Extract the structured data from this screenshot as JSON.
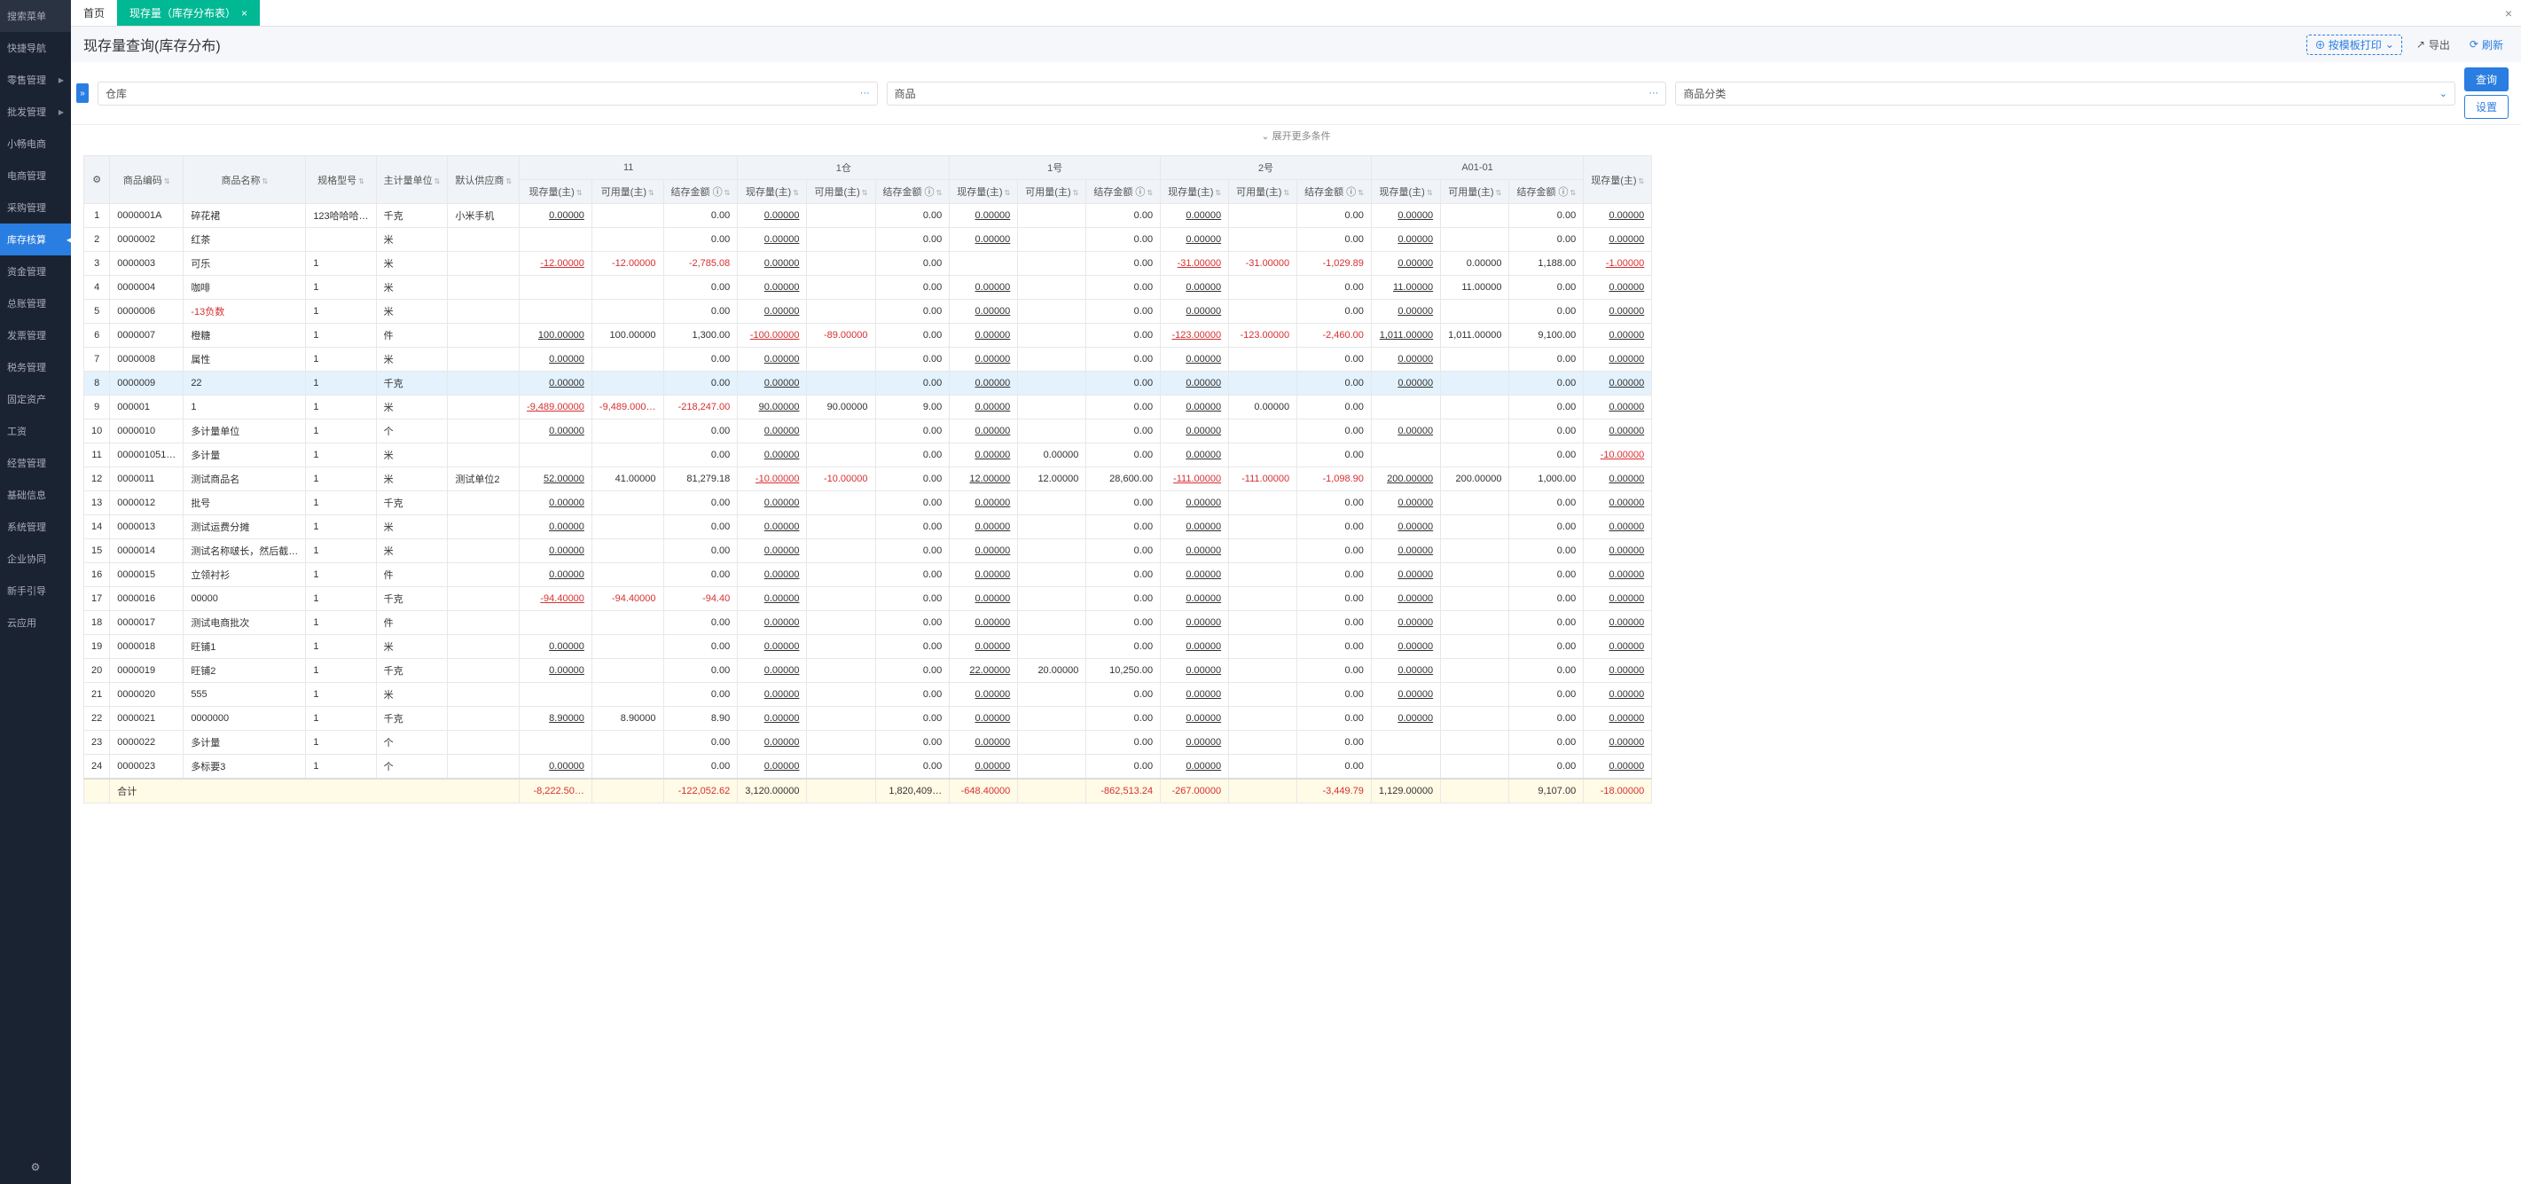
{
  "sidebar": {
    "items": [
      {
        "label": "搜索菜单",
        "arrow": false
      },
      {
        "label": "快捷导航",
        "arrow": false
      },
      {
        "label": "零售管理",
        "arrow": true
      },
      {
        "label": "批发管理",
        "arrow": true
      },
      {
        "label": "小畅电商",
        "arrow": false
      },
      {
        "label": "电商管理",
        "arrow": false
      },
      {
        "label": "采购管理",
        "arrow": false
      },
      {
        "label": "库存核算",
        "arrow": false,
        "active": true
      },
      {
        "label": "资金管理",
        "arrow": false
      },
      {
        "label": "总账管理",
        "arrow": false
      },
      {
        "label": "发票管理",
        "arrow": false
      },
      {
        "label": "税务管理",
        "arrow": false
      },
      {
        "label": "固定资产",
        "arrow": false
      },
      {
        "label": "工资",
        "arrow": false
      },
      {
        "label": "经营管理",
        "arrow": false
      },
      {
        "label": "基础信息",
        "arrow": false
      },
      {
        "label": "系统管理",
        "arrow": false
      },
      {
        "label": "企业协同",
        "arrow": false
      },
      {
        "label": "新手引导",
        "arrow": false
      },
      {
        "label": "云应用",
        "arrow": false
      }
    ]
  },
  "tabs": [
    {
      "label": "首页",
      "active": false,
      "closable": false
    },
    {
      "label": "现存量（库存分布表）",
      "active": true,
      "closable": true
    }
  ],
  "header": {
    "title": "现存量查询(库存分布)",
    "print": "⊕ 按模板打印",
    "export": "导出",
    "refresh": "刷新"
  },
  "filters": {
    "f1": "仓库",
    "f2": "商品",
    "f3": "商品分类",
    "sel": "···",
    "chev": "⌄",
    "query": "查询",
    "settings": "设置",
    "expand": "⌄ 展开更多条件"
  },
  "table": {
    "fixed_cols": [
      "",
      "商品编码",
      "商品名称",
      "规格型号",
      "主计量单位",
      "默认供应商"
    ],
    "warehouses": [
      "11",
      "1仓",
      "1号",
      "2号",
      "A01-01"
    ],
    "wh_sub": [
      "现存量(主)",
      "可用量(主)",
      "结存金额 ⓘ"
    ],
    "extra_col": "现存量(主)",
    "rows": [
      {
        "n": 1,
        "code": "0000001A",
        "name": "碎花裙",
        "spec": "123哈哈哈…",
        "unit": "千克",
        "sup": "小米手机",
        "v": [
          "0.00000",
          "",
          "0.00",
          "0.00000",
          "",
          "0.00",
          "0.00000",
          "",
          "0.00",
          "0.00000",
          "",
          "0.00",
          "0.00000",
          "",
          "0.00",
          "0.00000"
        ]
      },
      {
        "n": 2,
        "code": "0000002",
        "name": "红茶",
        "spec": "",
        "unit": "米",
        "sup": "",
        "v": [
          "",
          "",
          "0.00",
          "0.00000",
          "",
          "0.00",
          "0.00000",
          "",
          "0.00",
          "0.00000",
          "",
          "0.00",
          "0.00000",
          "",
          "0.00",
          "0.00000"
        ]
      },
      {
        "n": 3,
        "code": "0000003",
        "name": "可乐",
        "spec": "1",
        "unit": "米",
        "sup": "",
        "v": [
          "-12.00000",
          "-12.00000",
          "-2,785.08",
          "0.00000",
          "",
          "0.00",
          "",
          "",
          "0.00",
          "-31.00000",
          "-31.00000",
          "-1,029.89",
          "0.00000",
          "0.00000",
          "1,188.00",
          "-1.00000"
        ],
        "neg": [
          0,
          1,
          2,
          9,
          10,
          11,
          15
        ]
      },
      {
        "n": 4,
        "code": "0000004",
        "name": "咖啡",
        "spec": "1",
        "unit": "米",
        "sup": "",
        "v": [
          "",
          "",
          "0.00",
          "0.00000",
          "",
          "0.00",
          "0.00000",
          "",
          "0.00",
          "0.00000",
          "",
          "0.00",
          "11.00000",
          "11.00000",
          "0.00",
          "0.00000"
        ]
      },
      {
        "n": 5,
        "code": "0000006",
        "name": "-13负数",
        "nameNeg": true,
        "spec": "1",
        "unit": "米",
        "sup": "",
        "v": [
          "",
          "",
          "0.00",
          "0.00000",
          "",
          "0.00",
          "0.00000",
          "",
          "0.00",
          "0.00000",
          "",
          "0.00",
          "0.00000",
          "",
          "0.00",
          "0.00000"
        ]
      },
      {
        "n": 6,
        "code": "0000007",
        "name": "橙糖",
        "spec": "1",
        "unit": "件",
        "sup": "",
        "v": [
          "100.00000",
          "100.00000",
          "1,300.00",
          "-100.00000",
          "-89.00000",
          "0.00",
          "0.00000",
          "",
          "0.00",
          "-123.00000",
          "-123.00000",
          "-2,460.00",
          "1,011.00000",
          "1,011.00000",
          "9,100.00",
          "0.00000"
        ],
        "neg": [
          3,
          4,
          9,
          10,
          11
        ]
      },
      {
        "n": 7,
        "code": "0000008",
        "name": "属性",
        "spec": "1",
        "unit": "米",
        "sup": "",
        "v": [
          "0.00000",
          "",
          "0.00",
          "0.00000",
          "",
          "0.00",
          "0.00000",
          "",
          "0.00",
          "0.00000",
          "",
          "0.00",
          "0.00000",
          "",
          "0.00",
          "0.00000"
        ]
      },
      {
        "n": 8,
        "code": "0000009",
        "name": "22",
        "spec": "1",
        "unit": "千克",
        "sup": "",
        "hl": true,
        "v": [
          "0.00000",
          "",
          "0.00",
          "0.00000",
          "",
          "0.00",
          "0.00000",
          "",
          "0.00",
          "0.00000",
          "",
          "0.00",
          "0.00000",
          "",
          "0.00",
          "0.00000"
        ]
      },
      {
        "n": 9,
        "code": "000001",
        "name": "1",
        "spec": "1",
        "unit": "米",
        "sup": "",
        "v": [
          "-9,489.00000",
          "-9,489.000…",
          "-218,247.00",
          "90.00000",
          "90.00000",
          "9.00",
          "0.00000",
          "",
          "0.00",
          "0.00000",
          "0.00000",
          "0.00",
          "",
          "",
          "0.00",
          "0.00000"
        ],
        "neg": [
          0,
          1,
          2
        ]
      },
      {
        "n": 10,
        "code": "0000010",
        "name": "多计量单位",
        "spec": "1",
        "unit": "个",
        "sup": "",
        "v": [
          "0.00000",
          "",
          "0.00",
          "0.00000",
          "",
          "0.00",
          "0.00000",
          "",
          "0.00",
          "0.00000",
          "",
          "0.00",
          "0.00000",
          "",
          "0.00",
          "0.00000"
        ]
      },
      {
        "n": 11,
        "code": "000001051…",
        "name": "多计量",
        "spec": "1",
        "unit": "米",
        "sup": "",
        "v": [
          "",
          "",
          "0.00",
          "0.00000",
          "",
          "0.00",
          "0.00000",
          "0.00000",
          "0.00",
          "0.00000",
          "",
          "0.00",
          "",
          "",
          "0.00",
          "-10.00000"
        ],
        "neg": [
          15
        ]
      },
      {
        "n": 12,
        "code": "0000011",
        "name": "测试商品名",
        "spec": "1",
        "unit": "米",
        "sup": "测试单位2",
        "v": [
          "52.00000",
          "41.00000",
          "81,279.18",
          "-10.00000",
          "-10.00000",
          "0.00",
          "12.00000",
          "12.00000",
          "28,600.00",
          "-111.00000",
          "-111.00000",
          "-1,098.90",
          "200.00000",
          "200.00000",
          "1,000.00",
          "0.00000"
        ],
        "neg": [
          3,
          4,
          9,
          10,
          11
        ]
      },
      {
        "n": 13,
        "code": "0000012",
        "name": "批号",
        "spec": "1",
        "unit": "千克",
        "sup": "",
        "v": [
          "0.00000",
          "",
          "0.00",
          "0.00000",
          "",
          "0.00",
          "0.00000",
          "",
          "0.00",
          "0.00000",
          "",
          "0.00",
          "0.00000",
          "",
          "0.00",
          "0.00000"
        ]
      },
      {
        "n": 14,
        "code": "0000013",
        "name": "测试运费分摊",
        "spec": "1",
        "unit": "米",
        "sup": "",
        "v": [
          "0.00000",
          "",
          "0.00",
          "0.00000",
          "",
          "0.00",
          "0.00000",
          "",
          "0.00",
          "0.00000",
          "",
          "0.00",
          "0.00000",
          "",
          "0.00",
          "0.00000"
        ]
      },
      {
        "n": 15,
        "code": "0000014",
        "name": "测试名称啵长，然后截…",
        "spec": "1",
        "unit": "米",
        "sup": "",
        "v": [
          "0.00000",
          "",
          "0.00",
          "0.00000",
          "",
          "0.00",
          "0.00000",
          "",
          "0.00",
          "0.00000",
          "",
          "0.00",
          "0.00000",
          "",
          "0.00",
          "0.00000"
        ]
      },
      {
        "n": 16,
        "code": "0000015",
        "name": "立领衬衫",
        "spec": "1",
        "unit": "件",
        "sup": "",
        "v": [
          "0.00000",
          "",
          "0.00",
          "0.00000",
          "",
          "0.00",
          "0.00000",
          "",
          "0.00",
          "0.00000",
          "",
          "0.00",
          "0.00000",
          "",
          "0.00",
          "0.00000"
        ]
      },
      {
        "n": 17,
        "code": "0000016",
        "name": "00000",
        "spec": "1",
        "unit": "千克",
        "sup": "",
        "v": [
          "-94.40000",
          "-94.40000",
          "-94.40",
          "0.00000",
          "",
          "0.00",
          "0.00000",
          "",
          "0.00",
          "0.00000",
          "",
          "0.00",
          "0.00000",
          "",
          "0.00",
          "0.00000"
        ],
        "neg": [
          0,
          1,
          2
        ]
      },
      {
        "n": 18,
        "code": "0000017",
        "name": "测试电商批次",
        "spec": "1",
        "unit": "件",
        "sup": "",
        "v": [
          "",
          "",
          "0.00",
          "0.00000",
          "",
          "0.00",
          "0.00000",
          "",
          "0.00",
          "0.00000",
          "",
          "0.00",
          "0.00000",
          "",
          "0.00",
          "0.00000"
        ]
      },
      {
        "n": 19,
        "code": "0000018",
        "name": "旺铺1",
        "spec": "1",
        "unit": "米",
        "sup": "",
        "v": [
          "0.00000",
          "",
          "0.00",
          "0.00000",
          "",
          "0.00",
          "0.00000",
          "",
          "0.00",
          "0.00000",
          "",
          "0.00",
          "0.00000",
          "",
          "0.00",
          "0.00000"
        ]
      },
      {
        "n": 20,
        "code": "0000019",
        "name": "旺铺2",
        "spec": "1",
        "unit": "千克",
        "sup": "",
        "v": [
          "0.00000",
          "",
          "0.00",
          "0.00000",
          "",
          "0.00",
          "22.00000",
          "20.00000",
          "10,250.00",
          "0.00000",
          "",
          "0.00",
          "0.00000",
          "",
          "0.00",
          "0.00000"
        ]
      },
      {
        "n": 21,
        "code": "0000020",
        "name": "555",
        "spec": "1",
        "unit": "米",
        "sup": "",
        "v": [
          "",
          "",
          "0.00",
          "0.00000",
          "",
          "0.00",
          "0.00000",
          "",
          "0.00",
          "0.00000",
          "",
          "0.00",
          "0.00000",
          "",
          "0.00",
          "0.00000"
        ]
      },
      {
        "n": 22,
        "code": "0000021",
        "name": "0000000",
        "spec": "1",
        "unit": "千克",
        "sup": "",
        "v": [
          "8.90000",
          "8.90000",
          "8.90",
          "0.00000",
          "",
          "0.00",
          "0.00000",
          "",
          "0.00",
          "0.00000",
          "",
          "0.00",
          "0.00000",
          "",
          "0.00",
          "0.00000"
        ]
      },
      {
        "n": 23,
        "code": "0000022",
        "name": "多计量",
        "spec": "1",
        "unit": "个",
        "sup": "",
        "v": [
          "",
          "",
          "0.00",
          "0.00000",
          "",
          "0.00",
          "0.00000",
          "",
          "0.00",
          "0.00000",
          "",
          "0.00",
          "",
          "",
          "0.00",
          "0.00000"
        ]
      },
      {
        "n": 24,
        "code": "0000023",
        "name": "多标要3",
        "spec": "1",
        "unit": "个",
        "sup": "",
        "v": [
          "0.00000",
          "",
          "0.00",
          "0.00000",
          "",
          "0.00",
          "0.00000",
          "",
          "0.00",
          "0.00000",
          "",
          "0.00",
          "",
          "",
          "0.00",
          "0.00000"
        ]
      }
    ],
    "total": {
      "label": "合计",
      "v": [
        "-8,222.50…",
        "",
        "-122,052.62",
        "3,120.00000",
        "",
        "1,820,409…",
        "-648.40000",
        "",
        "-862,513.24",
        "-267.00000",
        "",
        "-3,449.79",
        "1,129.00000",
        "",
        "9,107.00",
        "-18.00000"
      ],
      "neg": [
        0,
        2,
        6,
        8,
        9,
        11,
        15
      ]
    }
  }
}
